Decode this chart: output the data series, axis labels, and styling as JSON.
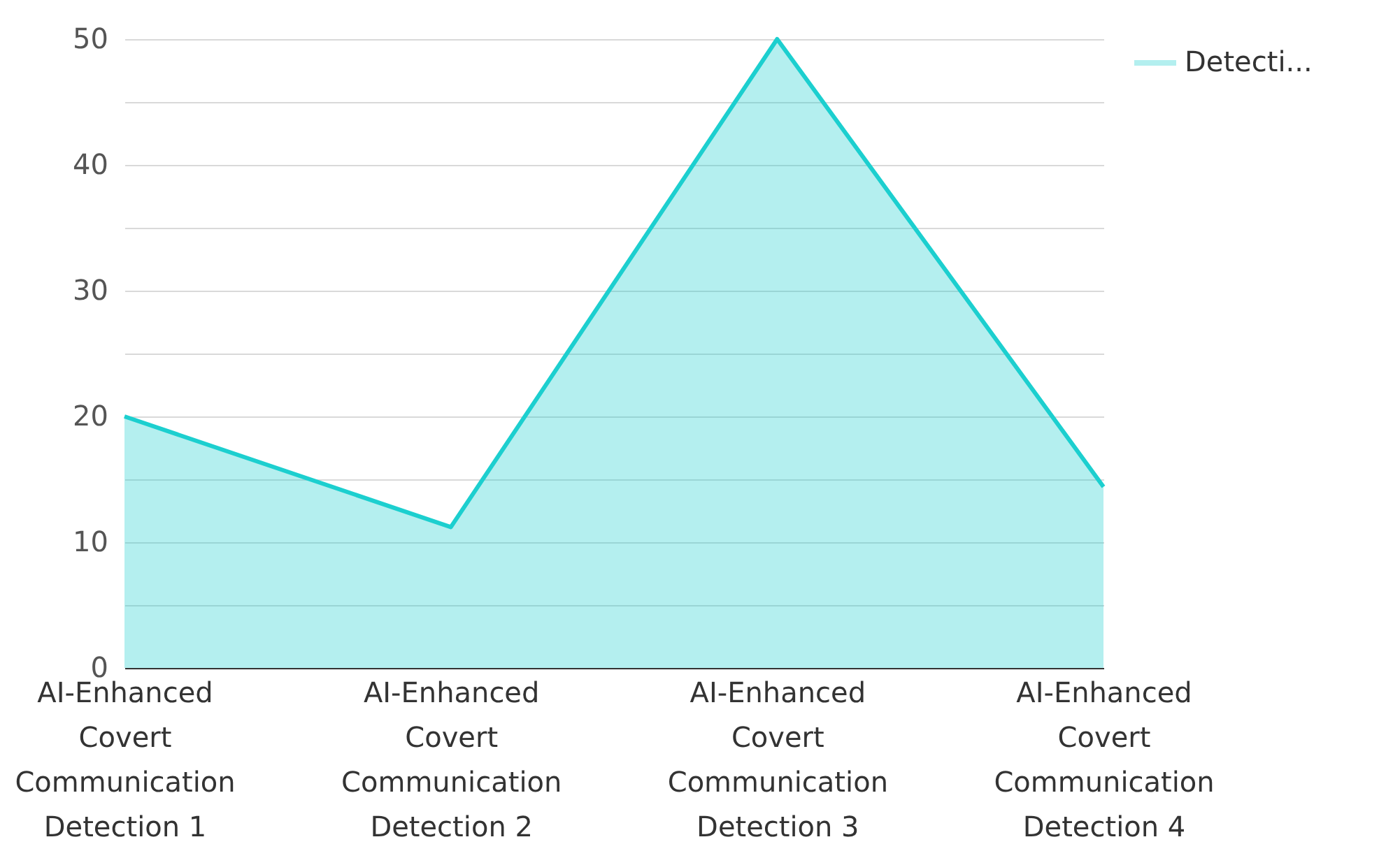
{
  "chart_data": {
    "type": "area",
    "categories": [
      "AI-Enhanced Covert Communication Detection 1",
      "AI-Enhanced Covert Communication Detection 2",
      "AI-Enhanced Covert Communication Detection 3",
      "AI-Enhanced Covert Communication Detection 4"
    ],
    "series": [
      {
        "name": "Detecti...",
        "color": "#1ccfcf",
        "values": [
          20,
          11.2,
          50,
          14.4
        ]
      }
    ],
    "ylim": [
      0,
      50
    ],
    "yticks": [
      0,
      {
        "value": 5,
        "label": null
      },
      10,
      {
        "value": 15,
        "label": null
      },
      20,
      {
        "value": 25,
        "label": null
      },
      30,
      {
        "value": 35,
        "label": null
      },
      40,
      {
        "value": 45,
        "label": null
      },
      50
    ],
    "grid": "y",
    "legend": "top right"
  }
}
